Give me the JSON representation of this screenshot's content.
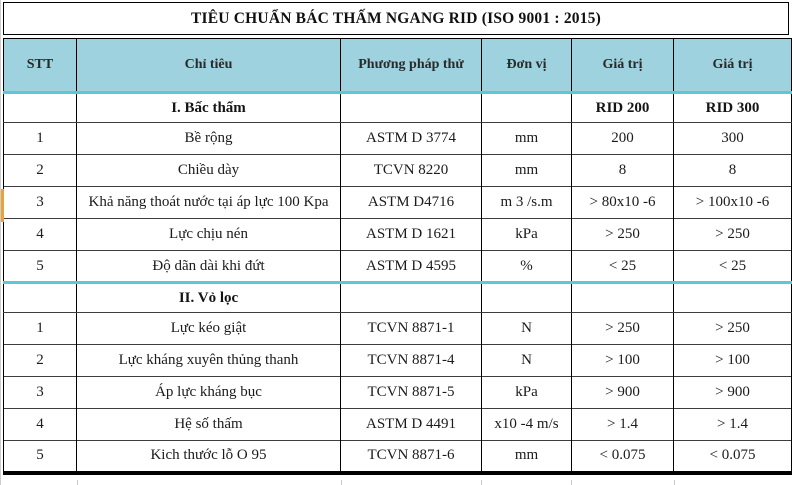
{
  "title": "TIÊU CHUẨN BÁC THẤM NGANG RID (ISO 9001 : 2015)",
  "columns": [
    "STT",
    "Chỉ tiêu",
    "Phương pháp thử",
    "Đơn vị",
    "Giá trị",
    "Giá trị"
  ],
  "colors": {
    "header_bg": "#9ed2de",
    "section_border": "#5fc6d3",
    "row_marker": "#e8a33d",
    "grid_border": "#000000"
  },
  "sections": [
    {
      "label": "I. Bấc thẩm",
      "value_headers": [
        "RID 200",
        "RID 300"
      ],
      "rows": [
        {
          "stt": "1",
          "name": "Bề rộng",
          "method": "ASTM D 3774",
          "unit": "mm",
          "v1": "200",
          "v2": "300"
        },
        {
          "stt": "2",
          "name": "Chiều dày",
          "method": "TCVN 8220",
          "unit": "mm",
          "v1": "8",
          "v2": "8"
        },
        {
          "stt": "3",
          "name": "Khả năng thoát nước tại áp lực 100 Kpa",
          "method": "ASTM D4716",
          "unit": "m 3 /s.m",
          "v1": "> 80x10 -6",
          "v2": "> 100x10 -6",
          "marked": true
        },
        {
          "stt": "4",
          "name": "Lực chịu nén",
          "method": "ASTM D 1621",
          "unit": "kPa",
          "v1": "> 250",
          "v2": "> 250"
        },
        {
          "stt": "5",
          "name": "Độ dãn dài khi đứt",
          "method": "ASTM D 4595",
          "unit": "%",
          "v1": "< 25",
          "v2": "< 25"
        }
      ]
    },
    {
      "label": "II. Vỏ lọc",
      "value_headers": [
        "",
        ""
      ],
      "rows": [
        {
          "stt": "1",
          "name": "Lực kéo giật",
          "method": "TCVN 8871-1",
          "unit": "N",
          "v1": "> 250",
          "v2": "> 250"
        },
        {
          "stt": "2",
          "name": "Lực kháng xuyên thủng thanh",
          "method": "TCVN 8871-4",
          "unit": "N",
          "v1": "> 100",
          "v2": "> 100"
        },
        {
          "stt": "3",
          "name": "Áp lực kháng bục",
          "method": "TCVN 8871-5",
          "unit": "kPa",
          "v1": "> 900",
          "v2": "> 900"
        },
        {
          "stt": "4",
          "name": "Hệ số thấm",
          "method": "ASTM D 4491",
          "unit": "x10 -4 m/s",
          "v1": "> 1.4",
          "v2": "> 1.4"
        },
        {
          "stt": "5",
          "name": "Kich thước lỗ O 95",
          "method": "TCVN 8871-6",
          "unit": "mm",
          "v1": "< 0.075",
          "v2": "< 0.075"
        }
      ]
    }
  ]
}
